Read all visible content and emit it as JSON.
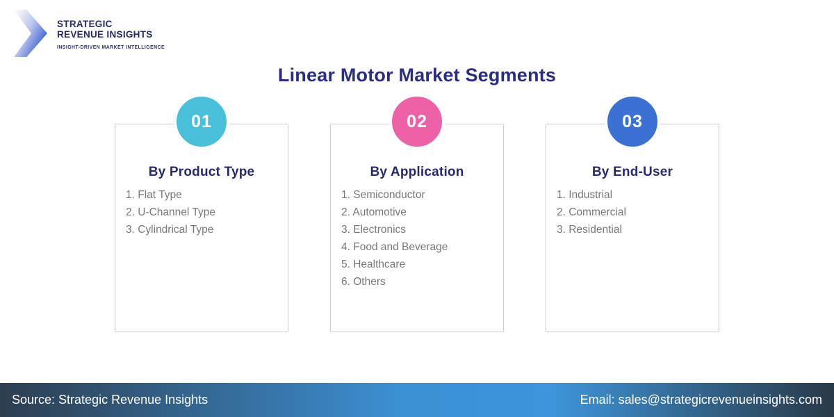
{
  "brand": {
    "name_line1": "STRATEGIC",
    "name_line2": "REVENUE INSIGHTS",
    "tagline": "INSIGHT-DRIVEN MARKET INTELLIGENCE"
  },
  "title": "Linear Motor Market Segments",
  "cards": [
    {
      "number": "01",
      "accent_color": "#49c0da",
      "heading": "By Product Type",
      "items": [
        "1. Flat Type",
        "2. U-Channel Type",
        "3. Cylindrical Type"
      ]
    },
    {
      "number": "02",
      "accent_color": "#ed61a6",
      "heading": "By Application",
      "items": [
        "1. Semiconductor",
        "2. Automotive",
        "3. Electronics",
        "4. Food and Beverage",
        "5. Healthcare",
        "6. Others"
      ]
    },
    {
      "number": "03",
      "accent_color": "#3a71d3",
      "heading": "By End-User",
      "items": [
        "1. Industrial",
        "2. Commercial",
        "3. Residential"
      ]
    }
  ],
  "footer": {
    "source": "Source: Strategic Revenue Insights",
    "email": "Email: sales@strategicrevenueinsights.com"
  },
  "colors": {
    "title_text": "#2b2d80",
    "heading_text": "#262a6f",
    "list_text": "#77787a",
    "card_border": "#d0d0d0",
    "footer_dark": "#2d3e4f",
    "footer_blue": "#3b90d4"
  }
}
